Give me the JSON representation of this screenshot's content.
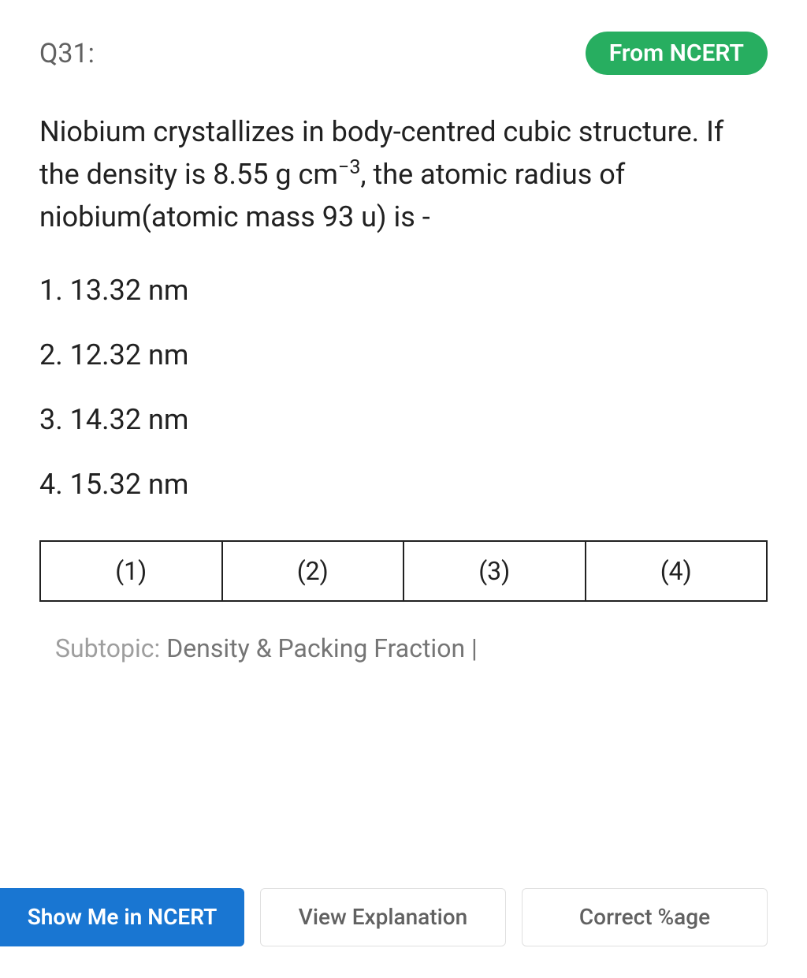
{
  "header": {
    "question_number": "Q31:",
    "source_badge": "From NCERT"
  },
  "question": {
    "text_part1": "Niobium crystallizes in body-centred cubic structure. If the density is 8.55 g cm",
    "superscript": "−3",
    "text_part2": ", the atomic radius of niobium(atomic mass 93 u) is -"
  },
  "options": [
    "1. 13.32 nm",
    "2. 12.32 nm",
    "3. 14.32 nm",
    "4. 15.32 nm"
  ],
  "answer_cells": [
    "(1)",
    "(2)",
    "(3)",
    "(4)"
  ],
  "subtopic": {
    "label": "Subtopic:  ",
    "value": "Density & Packing Fraction |"
  },
  "buttons": {
    "primary": "Show Me in NCERT",
    "view_explanation": "View Explanation",
    "correct_percentage": "Correct %age"
  },
  "colors": {
    "badge_bg": "#27ae60",
    "primary_btn": "#1976d2",
    "text_dark": "#212121",
    "text_gray": "#616161",
    "text_light_gray": "#9e9e9e",
    "border": "#e0e0e0"
  }
}
